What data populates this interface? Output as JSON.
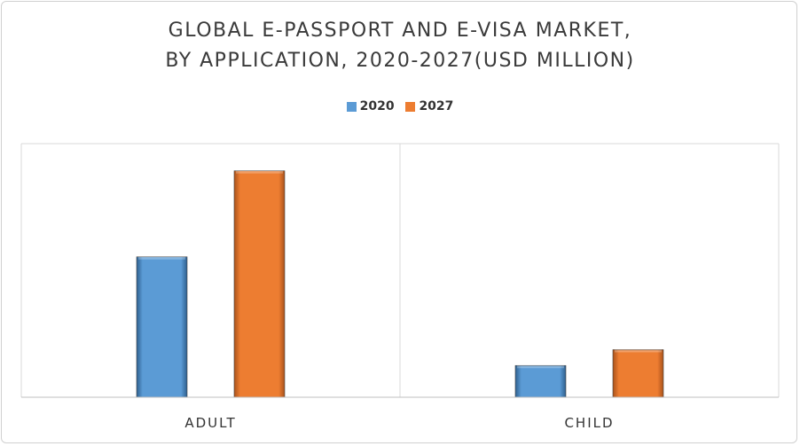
{
  "title_lines": [
    "GLOBAL E-PASSPORT AND E-VISA MARKET,",
    "BY APPLICATION, 2020-2027(USD MILLION)"
  ],
  "legend": [
    {
      "name": "2020",
      "color": "#5b9bd5"
    },
    {
      "name": "2027",
      "color": "#ed7d31"
    }
  ],
  "chart_data": {
    "type": "bar",
    "title": "GLOBAL E-PASSPORT AND E-VISA MARKET, BY APPLICATION, 2020-2027(USD MILLION)",
    "categories": [
      "ADULT",
      "CHILD"
    ],
    "series": [
      {
        "name": "2020",
        "values": [
          62,
          14
        ],
        "color": "#5b9bd5"
      },
      {
        "name": "2027",
        "values": [
          100,
          21
        ],
        "color": "#ed7d31"
      }
    ],
    "ylim": [
      0,
      112
    ],
    "grid": false,
    "legend_position": "top"
  }
}
